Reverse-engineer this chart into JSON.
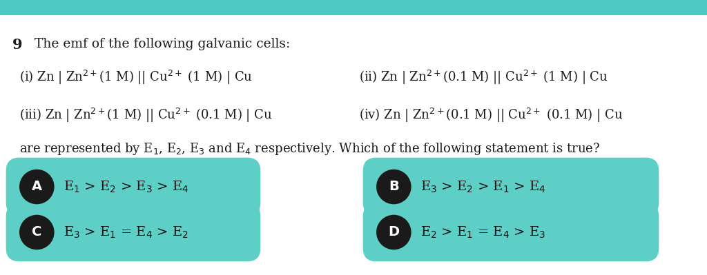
{
  "background_color": "#ffffff",
  "top_bar_color": "#4CC9C0",
  "top_bar_height": 0.06,
  "question_number": "9",
  "title_line1": "The emf of the following galvanic cells:",
  "cell_i": "(i) Zn | Zn$^{2+}$(1 M) || Cu$^{2+}$ (1 M) | Cu",
  "cell_ii": "(ii) Zn | Zn$^{2+}$(0.1 M) || Cu$^{2+}$ (1 M) | Cu",
  "cell_iii": "(iii) Zn | Zn$^{2+}$(1 M) || Cu$^{2+}$ (0.1 M) | Cu",
  "cell_iv": "(iv) Zn | Zn$^{2+}$(0.1 M) || Cu$^{2+}$ (0.1 M) | Cu",
  "statement_line": "are represented by E$_1$, E$_2$, E$_3$ and E$_4$ respectively. Which of the following statement is true?",
  "options": [
    {
      "label": "A",
      "text": "E$_1$ > E$_2$ > E$_3$ > E$_4$"
    },
    {
      "label": "B",
      "text": "E$_3$ > E$_2$ > E$_1$ > E$_4$"
    },
    {
      "label": "C",
      "text": "E$_3$ > E$_1$ = E$_4$ > E$_2$"
    },
    {
      "label": "D",
      "text": "E$_2$ > E$_1$ = E$_4$ > E$_3$"
    }
  ],
  "option_bg_color": "#5ECFC6",
  "option_label_bg_color": "#1a1a1a",
  "option_label_text_color": "#ffffff",
  "text_color": "#1a1a1a",
  "font_size_title": 13.5,
  "font_size_cells": 13,
  "font_size_options": 14,
  "font_size_qnum": 15
}
